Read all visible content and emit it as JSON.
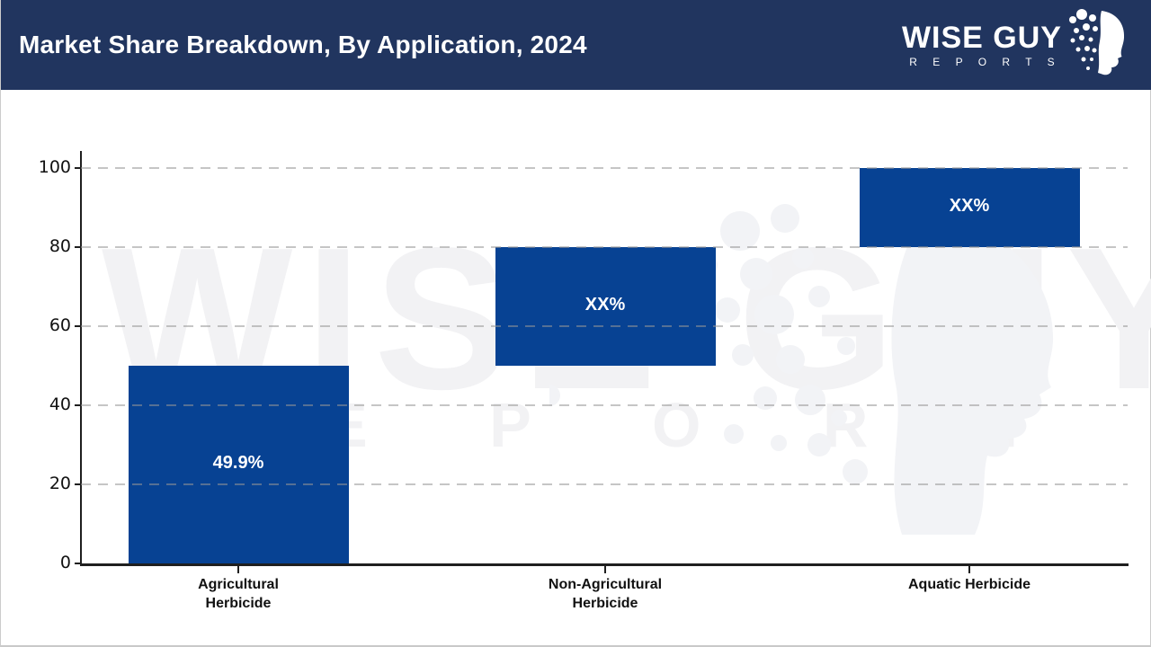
{
  "header": {
    "title": "Market Share Breakdown, By Application, 2024",
    "logo": {
      "name": "WISE GUY",
      "sub": "R E P O R T S"
    }
  },
  "watermark": {
    "line1": "WISE GUY",
    "line2": "R E P O R T S"
  },
  "colors": {
    "header_bg": "#21355F",
    "bar": "#074293",
    "bar_label": "#ffffff",
    "axis": "#1f1f1f",
    "gridline": "#c9c9c9",
    "watermark": "#f2f2f4",
    "tick_text": "#111111"
  },
  "chart_data": {
    "type": "bar",
    "subtype": "waterfall-stacked-percent",
    "title": "Market Share Breakdown, By Application, 2024",
    "categories": [
      "Agricultural Herbicide",
      "Non-Agricultural Herbicide",
      "Aquatic Herbicide"
    ],
    "category_lines": [
      [
        "Agricultural",
        "Herbicide"
      ],
      [
        "Non-Agricultural",
        "Herbicide"
      ],
      [
        "Aquatic Herbicide"
      ]
    ],
    "bars": [
      {
        "category": "Agricultural Herbicide",
        "label": "49.9%",
        "value": 49.9,
        "from": 0,
        "to": 49.9
      },
      {
        "category": "Non-Agricultural Herbicide",
        "label": "XX%",
        "value": null,
        "from": 50,
        "to": 80
      },
      {
        "category": "Aquatic Herbicide",
        "label": "XX%",
        "value": null,
        "from": 80,
        "to": 100
      }
    ],
    "yticks": [
      0,
      20,
      40,
      60,
      80,
      100
    ],
    "ylim": [
      0,
      100
    ],
    "xlabel": "",
    "ylabel": "",
    "grid": "dashed-horizontal",
    "legend": false
  }
}
